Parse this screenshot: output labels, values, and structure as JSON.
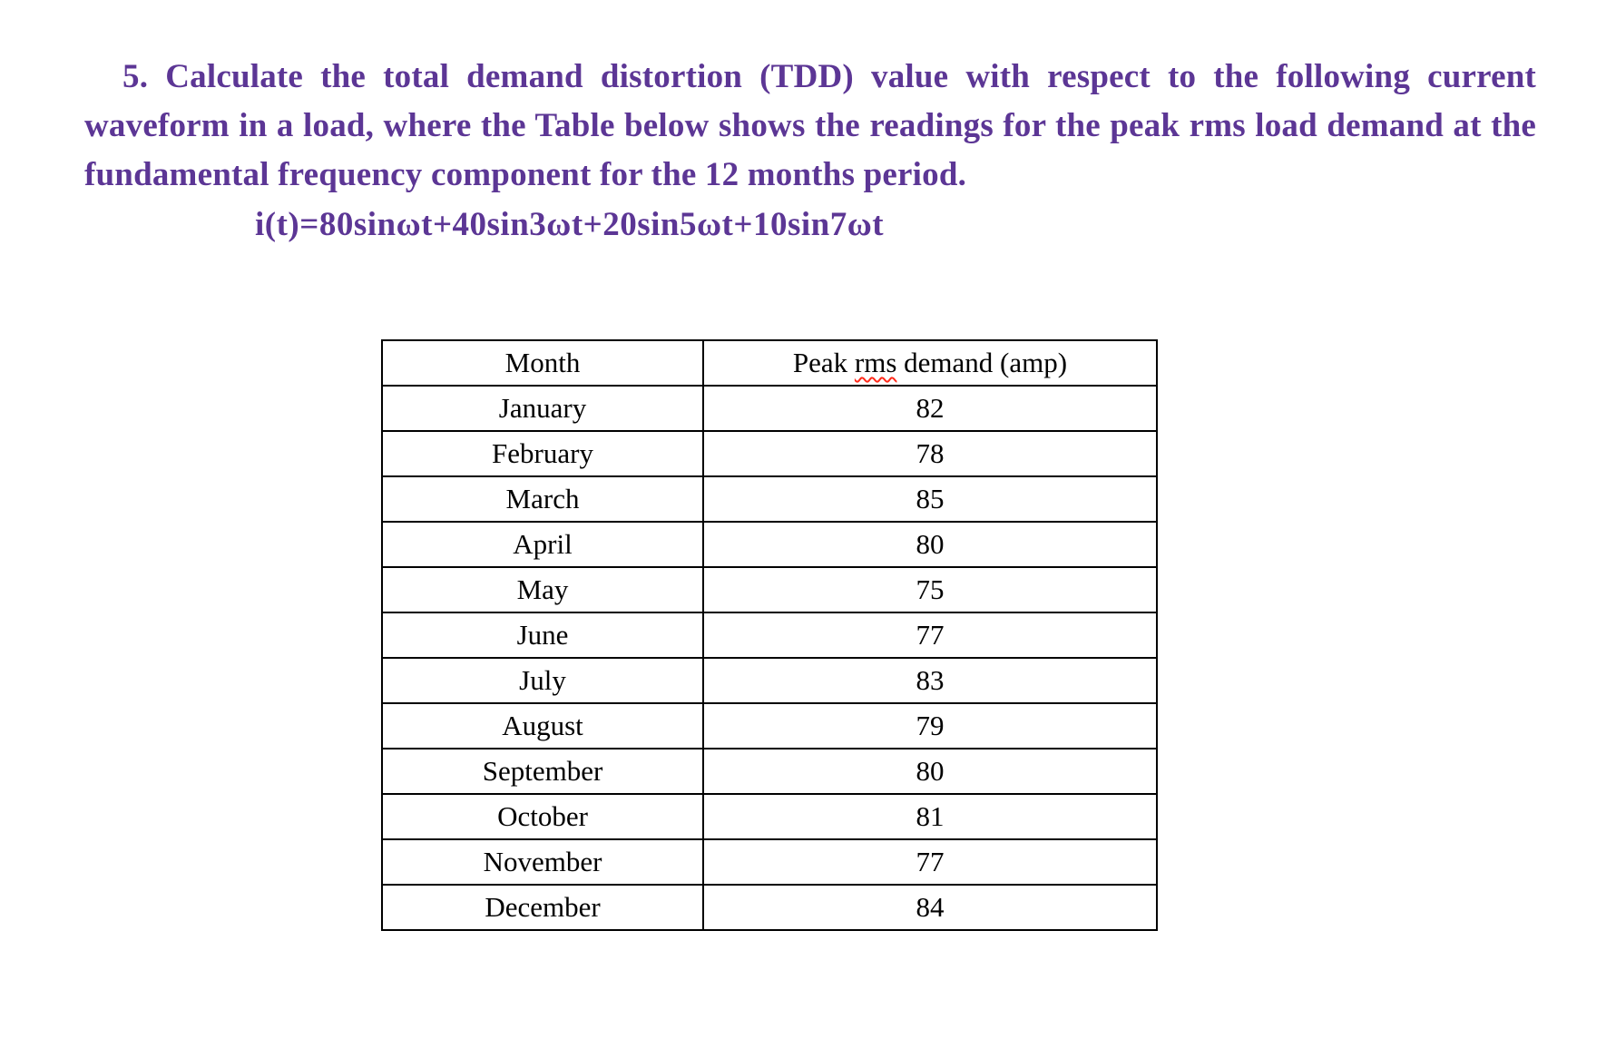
{
  "page": {
    "background": "#ffffff",
    "accent_text_color": "#5c3695",
    "table_border_color": "#000000",
    "spellcheck_squiggle_color": "#ff2a1a"
  },
  "question": {
    "paragraph": "5. Calculate the total demand distortion (TDD) value with respect to the following current waveform in a load, where the Table below shows the readings for the peak rms load demand at the fundamental frequency component for the 12 months period.",
    "equation": "i(t)=80sinωt+40sin3ωt+20sin5ωt+10sin7ωt"
  },
  "table": {
    "header_month": "Month",
    "header_value_prefix": "Peak",
    "header_value_misspelled": "rms",
    "header_value_suffix": "demand (amp)",
    "rows": [
      {
        "month": "January",
        "value": "82"
      },
      {
        "month": "February",
        "value": "78"
      },
      {
        "month": "March",
        "value": "85"
      },
      {
        "month": "April",
        "value": "80"
      },
      {
        "month": "May",
        "value": "75"
      },
      {
        "month": "June",
        "value": "77"
      },
      {
        "month": "July",
        "value": "83"
      },
      {
        "month": "August",
        "value": "79"
      },
      {
        "month": "September",
        "value": "80"
      },
      {
        "month": "October",
        "value": "81"
      },
      {
        "month": "November",
        "value": "77"
      },
      {
        "month": "December",
        "value": "84"
      }
    ]
  }
}
